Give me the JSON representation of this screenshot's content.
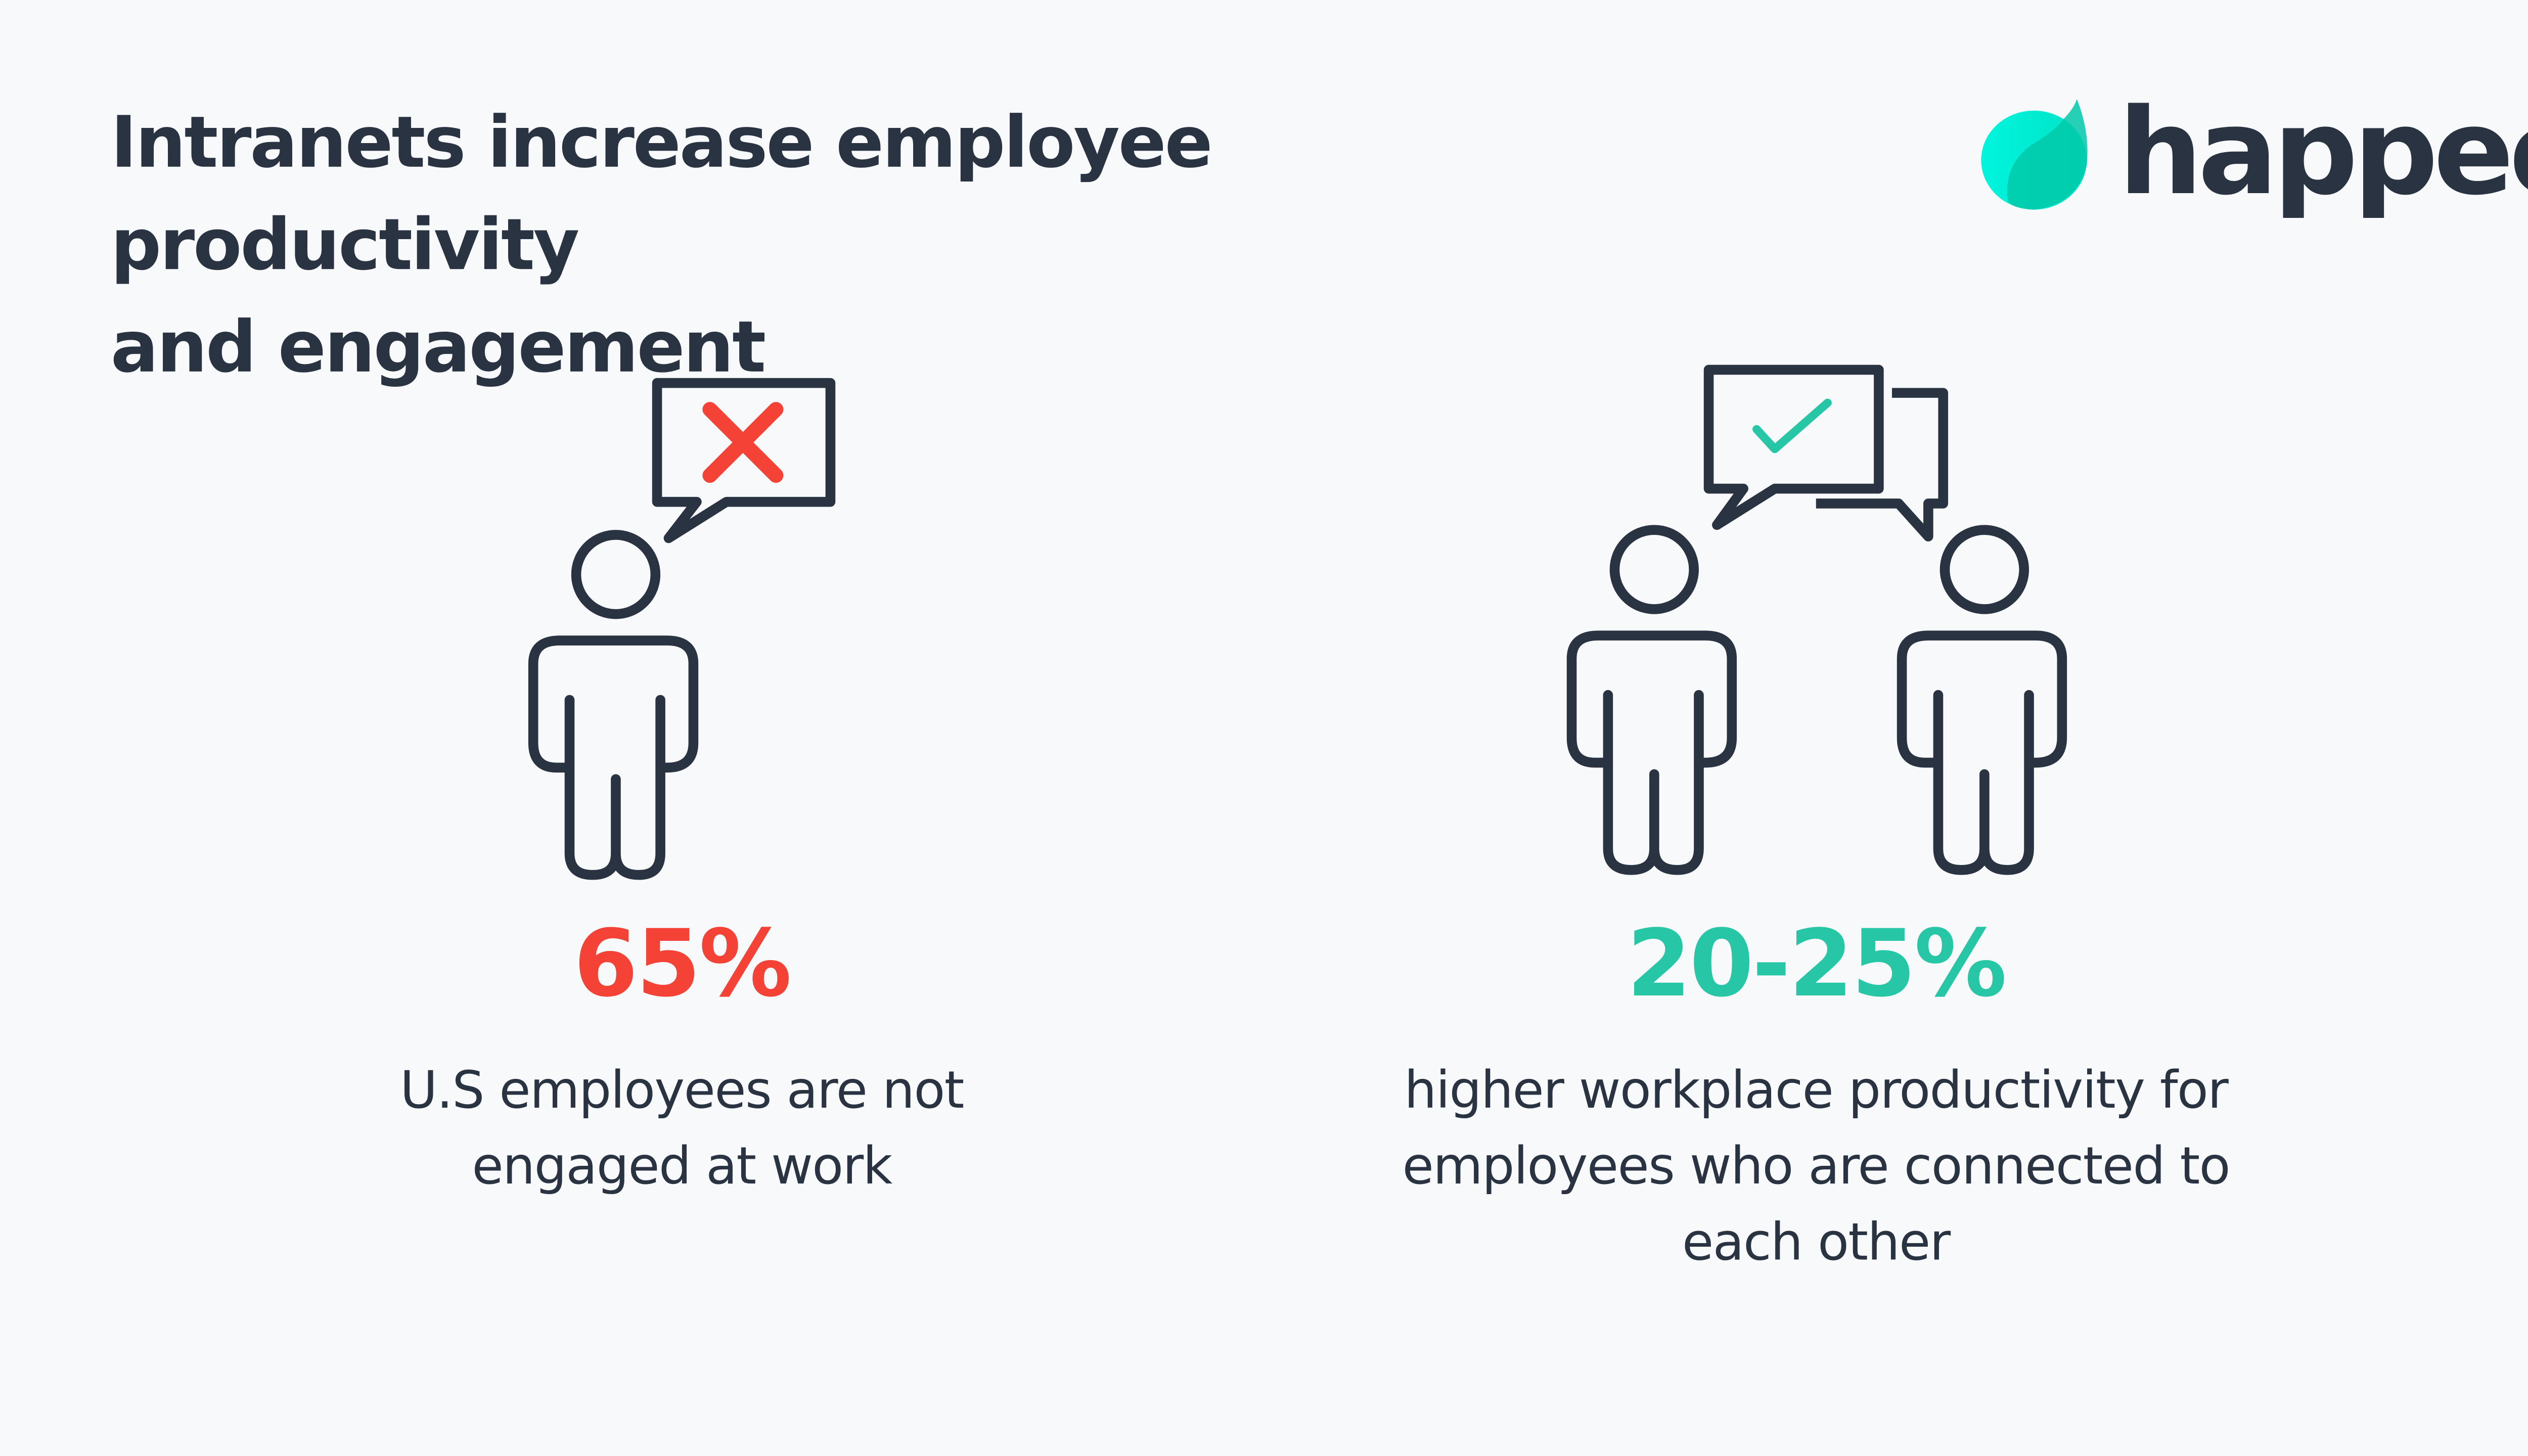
{
  "title_lines": [
    "Intranets increase employee productivity",
    "and engagement"
  ],
  "logo": {
    "text": "happeo",
    "icon": "leaf-icon"
  },
  "colors": {
    "background": "#f7f9fb",
    "text": "#2a3341",
    "negative": "#f44336",
    "positive": "#26c6a6"
  },
  "stats": [
    {
      "value": "65%",
      "description_lines": [
        "U.S employees are not",
        "engaged at work"
      ],
      "icon": "person-speech-x-icon"
    },
    {
      "value": "20-25%",
      "description_lines": [
        "higher workplace productivity for",
        "employees who are connected to",
        "each other"
      ],
      "icon": "two-people-speech-check-icon"
    }
  ]
}
